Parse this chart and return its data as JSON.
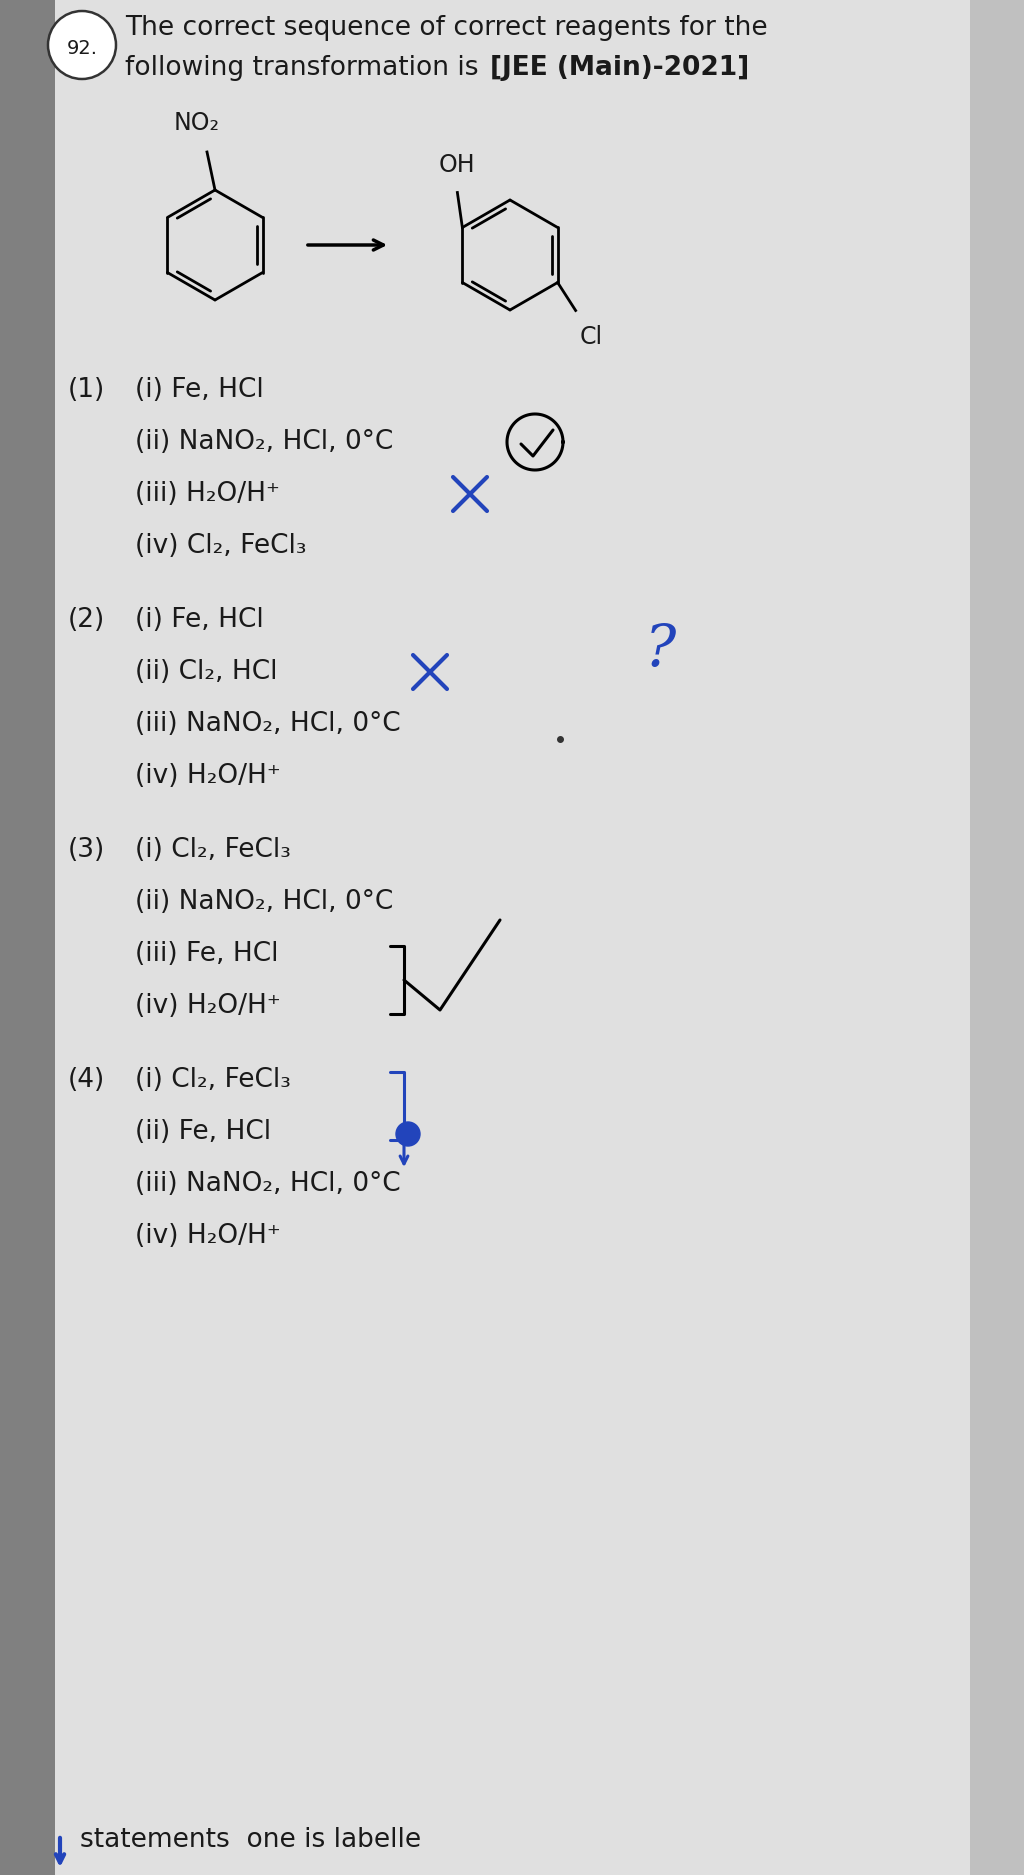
{
  "question_number": "92.",
  "question_text_line1": "The correct sequence of correct reagents for the",
  "question_text_line2": "following transformation is",
  "source": "[JEE (Main)-2021]",
  "text_color": "#1a1a1a",
  "options": [
    {
      "num": "(1)",
      "steps": [
        "(i) Fe, HCl",
        "(ii) NaNO₂, HCl, 0°C",
        "(iii) H₂O/H⁺",
        "(iv) Cl₂, FeCl₃"
      ]
    },
    {
      "num": "(2)",
      "steps": [
        "(i) Fe, HCl",
        "(ii) Cl₂, HCl",
        "(iii) NaNO₂, HCl, 0°C",
        "(iv) H₂O/H⁺"
      ]
    },
    {
      "num": "(3)",
      "steps": [
        "(i) Cl₂, FeCl₃",
        "(ii) NaNO₂, HCl, 0°C",
        "(iii) Fe, HCl",
        "(iv) H₂O/H⁺"
      ]
    },
    {
      "num": "(4)",
      "steps": [
        "(i) Cl₂, FeCl₃",
        "(ii) Fe, HCl",
        "(iii) NaNO₂, HCl, 0°C",
        "(iv) H₂O/H⁺"
      ]
    }
  ],
  "footer_text": "statements  one is labelle"
}
